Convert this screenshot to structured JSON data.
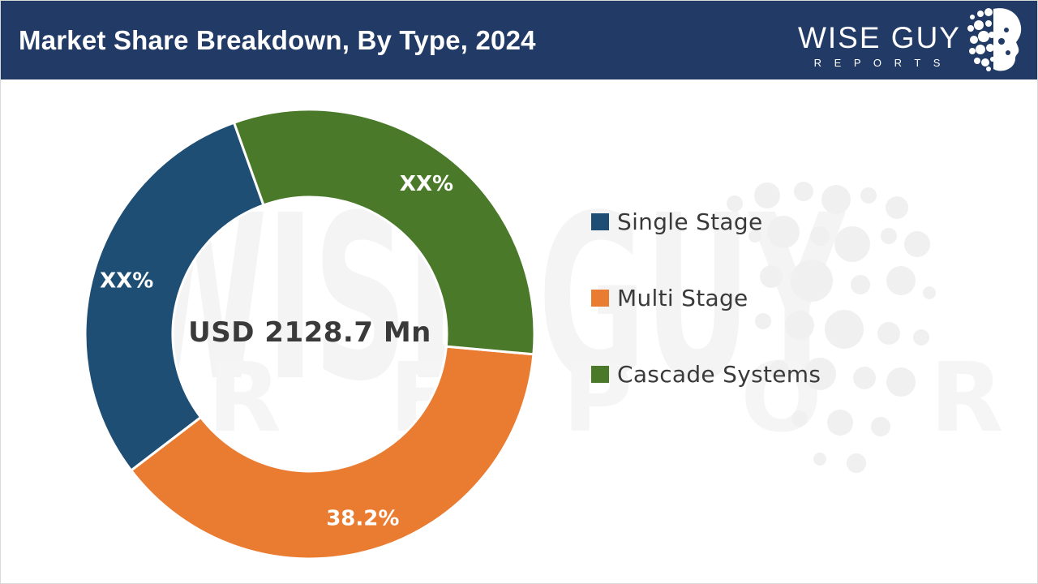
{
  "header": {
    "title": "Market Share Breakdown, By Type, 2024",
    "logo": {
      "line1": "WISE GUY",
      "line2": "R E P O R T S"
    }
  },
  "watermark": {
    "line1": "WISE GUY",
    "line2": "R E P O R T S"
  },
  "chart_data": {
    "type": "pie",
    "donut": true,
    "title": "Market Share Breakdown, By Type, 2024",
    "center_label": "USD 2128.7 Mn",
    "legend_position": "right",
    "start_angle_deg_cw_from_top": 340.3,
    "direction": "counterclockwise",
    "slices": [
      {
        "label": "Single Stage",
        "value_pct": 29.9,
        "display_label": "XX%",
        "color": "#1E4E74"
      },
      {
        "label": "Multi Stage",
        "value_pct": 38.2,
        "display_label": "38.2%",
        "color": "#EA7C31"
      },
      {
        "label": "Cascade Systems",
        "value_pct": 31.9,
        "display_label": "XX%",
        "color": "#4A7A29"
      }
    ]
  }
}
